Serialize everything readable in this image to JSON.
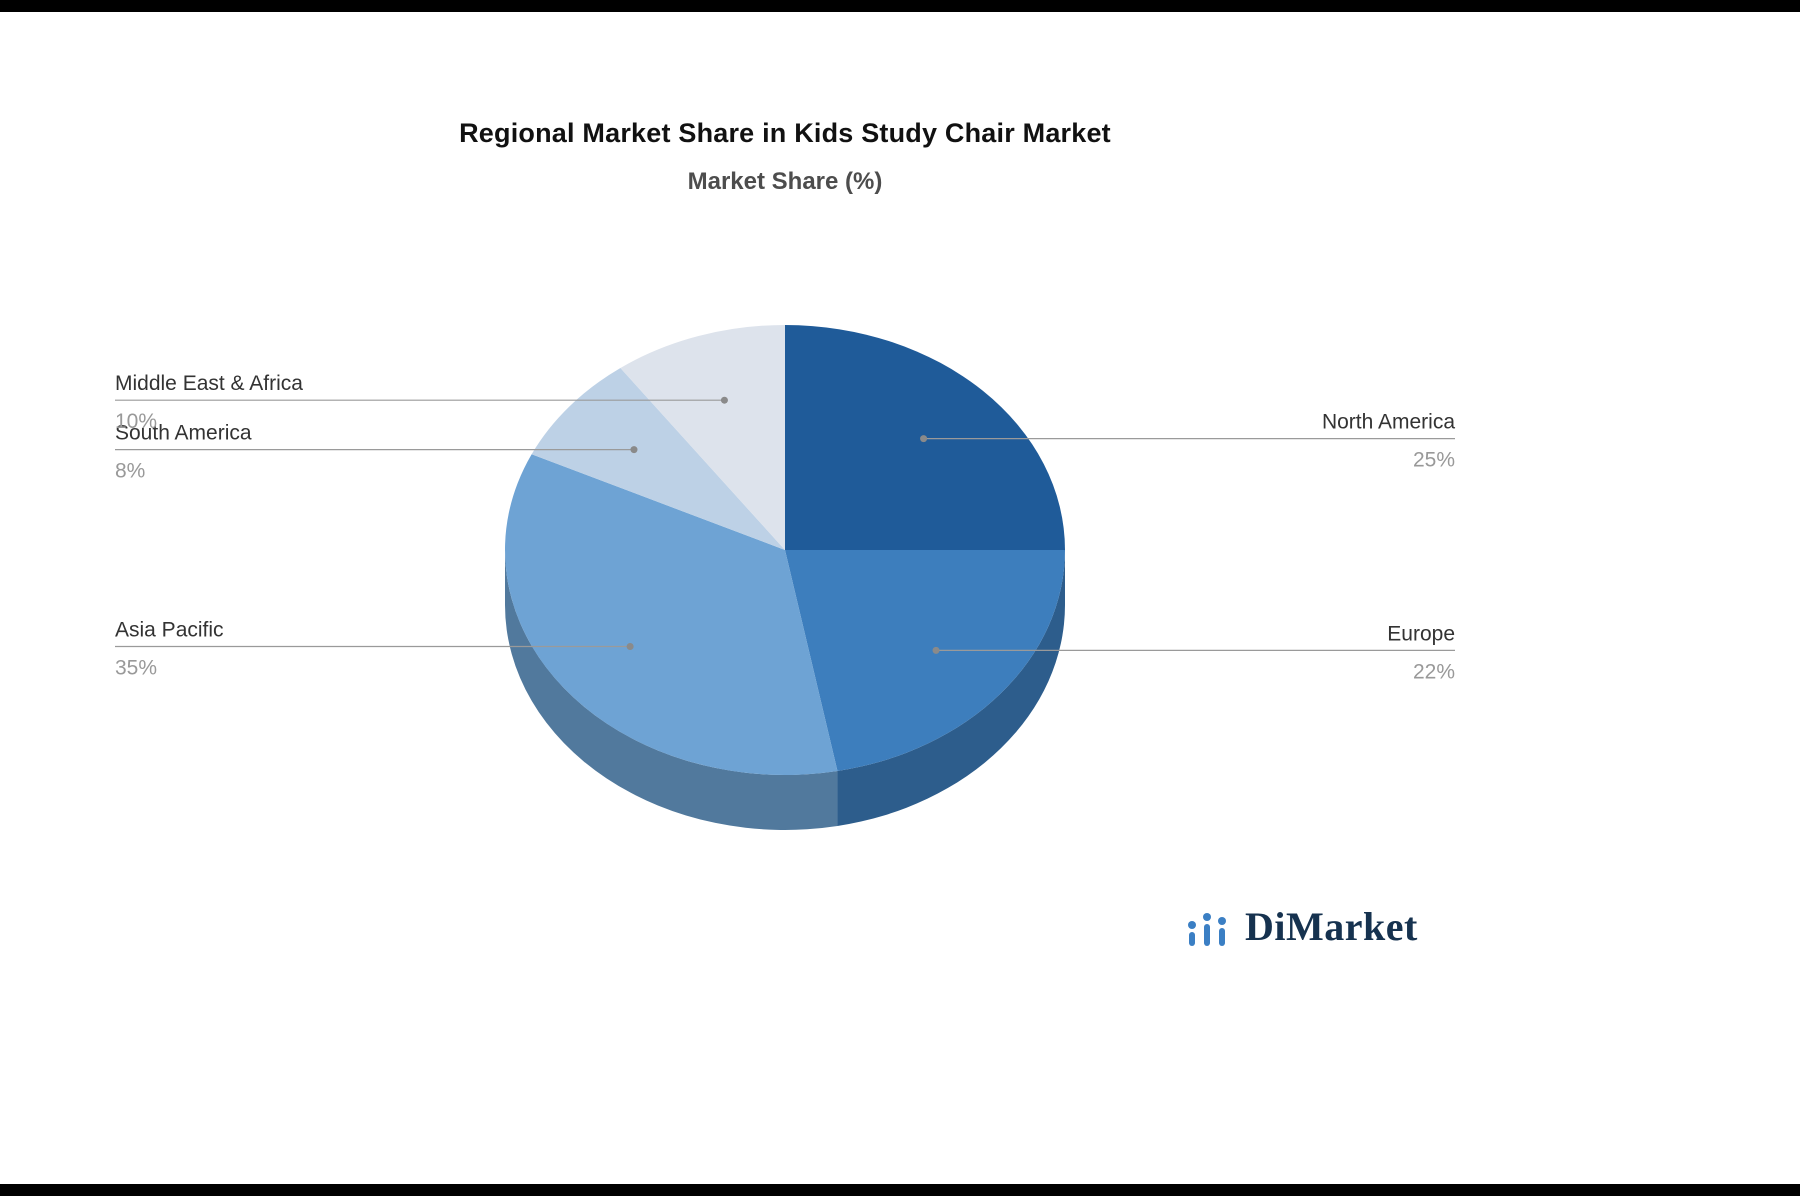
{
  "page": {
    "title": "Regional Market Share in Kids Study Chair Market",
    "subtitle": "Market Share (%)",
    "brand": {
      "name": "DiMarket",
      "icon": "bar-chart-icon",
      "text_color": "#16324f",
      "icon_color": "#3b7fc4"
    }
  },
  "chart_data": {
    "type": "pie",
    "style": "3d",
    "title": "Regional Market Share in Kids Study Chair Market",
    "subtitle": "Market Share (%)",
    "unit": "%",
    "direction": "clockwise",
    "start_angle_deg": 0,
    "labels": [
      "North America",
      "Europe",
      "Asia Pacific",
      "South America",
      "Middle East & Africa"
    ],
    "values": [
      25,
      22,
      35,
      8,
      10
    ],
    "colors": [
      "#1f5b99",
      "#3d7ebd",
      "#6ea3d4",
      "#bdd1e6",
      "#dde3ec"
    ],
    "label_color": "#333333",
    "value_color": "#999999",
    "leader_line_color": "#9a9a9a",
    "legend_position": "none",
    "grid": false
  }
}
